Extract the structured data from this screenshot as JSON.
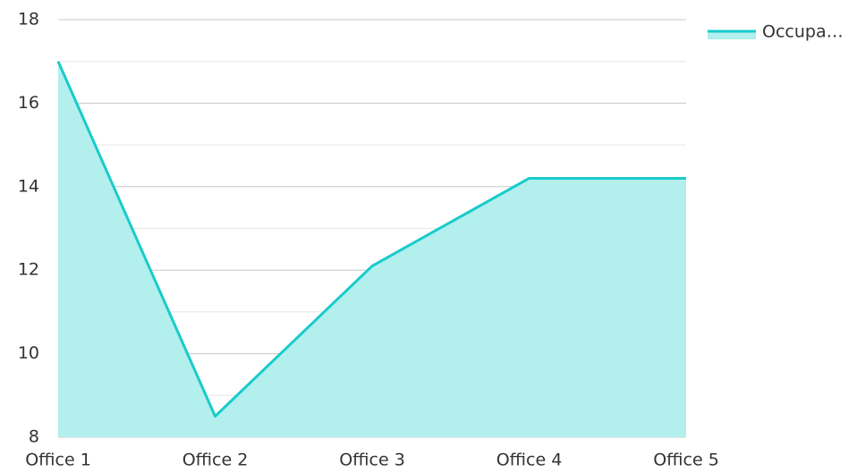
{
  "chart_data": {
    "type": "area",
    "categories": [
      "Office 1",
      "Office 2",
      "Office 3",
      "Office 4",
      "Office 5"
    ],
    "series": [
      {
        "name": "Occupa…",
        "color": "#19cbcb",
        "fill": "#b2efed",
        "values": [
          17,
          8.5,
          12.1,
          14.2,
          14.2
        ]
      }
    ],
    "ylim": [
      8,
      18
    ],
    "yticks": [
      8,
      10,
      12,
      14,
      16,
      18
    ],
    "minor_yticks": [
      9,
      11,
      13,
      15,
      17
    ],
    "grid": true,
    "legend": "right"
  }
}
